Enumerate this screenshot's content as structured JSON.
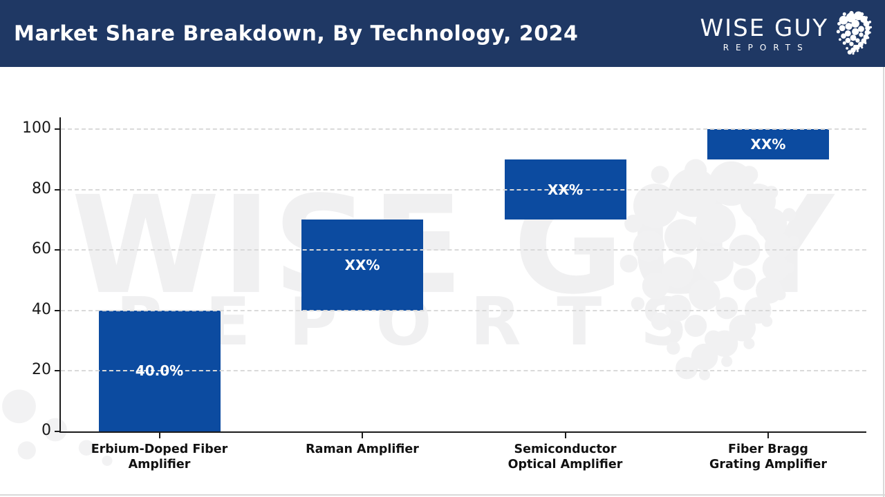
{
  "header": {
    "title": "Market Share Breakdown, By Technology, 2024",
    "logo": {
      "wordmark": "WISE GUY",
      "subtext": "REPORTS",
      "head_icon": "dotted-head-profile-icon"
    }
  },
  "watermark": {
    "line1": "WISE GUY",
    "line2": "REPORTS",
    "head_icon": "dotted-head-profile-icon"
  },
  "colors": {
    "header_bg": "#1f3864",
    "bar": "#0c4ba0",
    "grid": "#d9d9d9",
    "axis": "#1a1a1a",
    "bar_label": "#ffffff",
    "watermark": "#f0f0f1"
  },
  "chart_data": {
    "type": "bar",
    "subtype": "floating-segment-bars (stacked market-share breakdown)",
    "title": "Market Share Breakdown, By Technology, 2024",
    "categories": [
      "Erbium-Doped Fiber Amplifier",
      "Raman Amplifier",
      "Semiconductor Optical Amplifier",
      "Fiber Bragg Grating Amplifier"
    ],
    "category_lines": [
      [
        "Erbium-Doped Fiber",
        "Amplifier"
      ],
      [
        "Raman Amplifier"
      ],
      [
        "Semiconductor",
        "Optical Amplifier"
      ],
      [
        "Fiber Bragg",
        "Grating Amplifier"
      ]
    ],
    "segments": [
      {
        "category": "Erbium-Doped Fiber Amplifier",
        "from": 0,
        "to": 40,
        "share": 40,
        "label": "40.0%"
      },
      {
        "category": "Raman Amplifier",
        "from": 40,
        "to": 70,
        "share": 30,
        "label": "XX%"
      },
      {
        "category": "Semiconductor Optical Amplifier",
        "from": 70,
        "to": 90,
        "share": 20,
        "label": "XX%"
      },
      {
        "category": "Fiber Bragg Grating Amplifier",
        "from": 90,
        "to": 100,
        "share": 10,
        "label": "XX%"
      }
    ],
    "xlabel": "",
    "ylabel": "",
    "ylim": [
      0,
      100
    ],
    "yticks": [
      0,
      20,
      40,
      60,
      80,
      100
    ],
    "grid": "horizontal dashed",
    "legend": "none"
  }
}
